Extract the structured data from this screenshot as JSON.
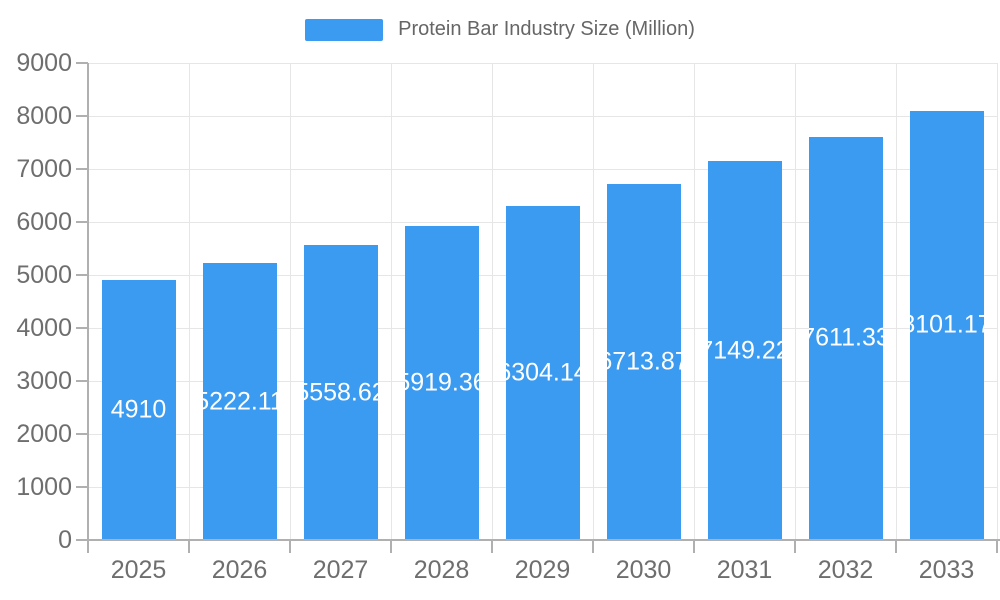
{
  "chart_data": {
    "type": "bar",
    "title": "Protein Bar Industry Size (Million)",
    "legend": {
      "label": "Protein Bar Industry Size (Million)",
      "position": "top-center"
    },
    "categories": [
      "2025",
      "2026",
      "2027",
      "2028",
      "2029",
      "2030",
      "2031",
      "2032",
      "2033"
    ],
    "series": [
      {
        "name": "Protein Bar Industry Size (Million)",
        "values": [
          4910,
          5222.11,
          5558.62,
          5919.36,
          6304.14,
          6713.87,
          7149.22,
          7611.33,
          8101.17
        ]
      }
    ],
    "bar_labels": [
      "4910",
      "5222.11",
      "5558.62",
      "5919.36",
      "6304.14",
      "6713.87",
      "7149.22",
      "7611.33",
      "8101.17"
    ],
    "xlabel": "",
    "ylabel": "",
    "ylim": [
      0,
      9000
    ],
    "y_tick_step": 1000,
    "y_tick_labels": [
      "0",
      "1000",
      "2000",
      "3000",
      "4000",
      "5000",
      "6000",
      "7000",
      "8000",
      "9000"
    ],
    "grid": true,
    "colors": {
      "bar": "#3B9BF0",
      "bar_label_text": "#ffffff",
      "axis_line": "#b0b0b0",
      "gridline": "#e6e6e6",
      "tick_label_text": "#6e6e6e",
      "legend_text": "#666666"
    }
  }
}
